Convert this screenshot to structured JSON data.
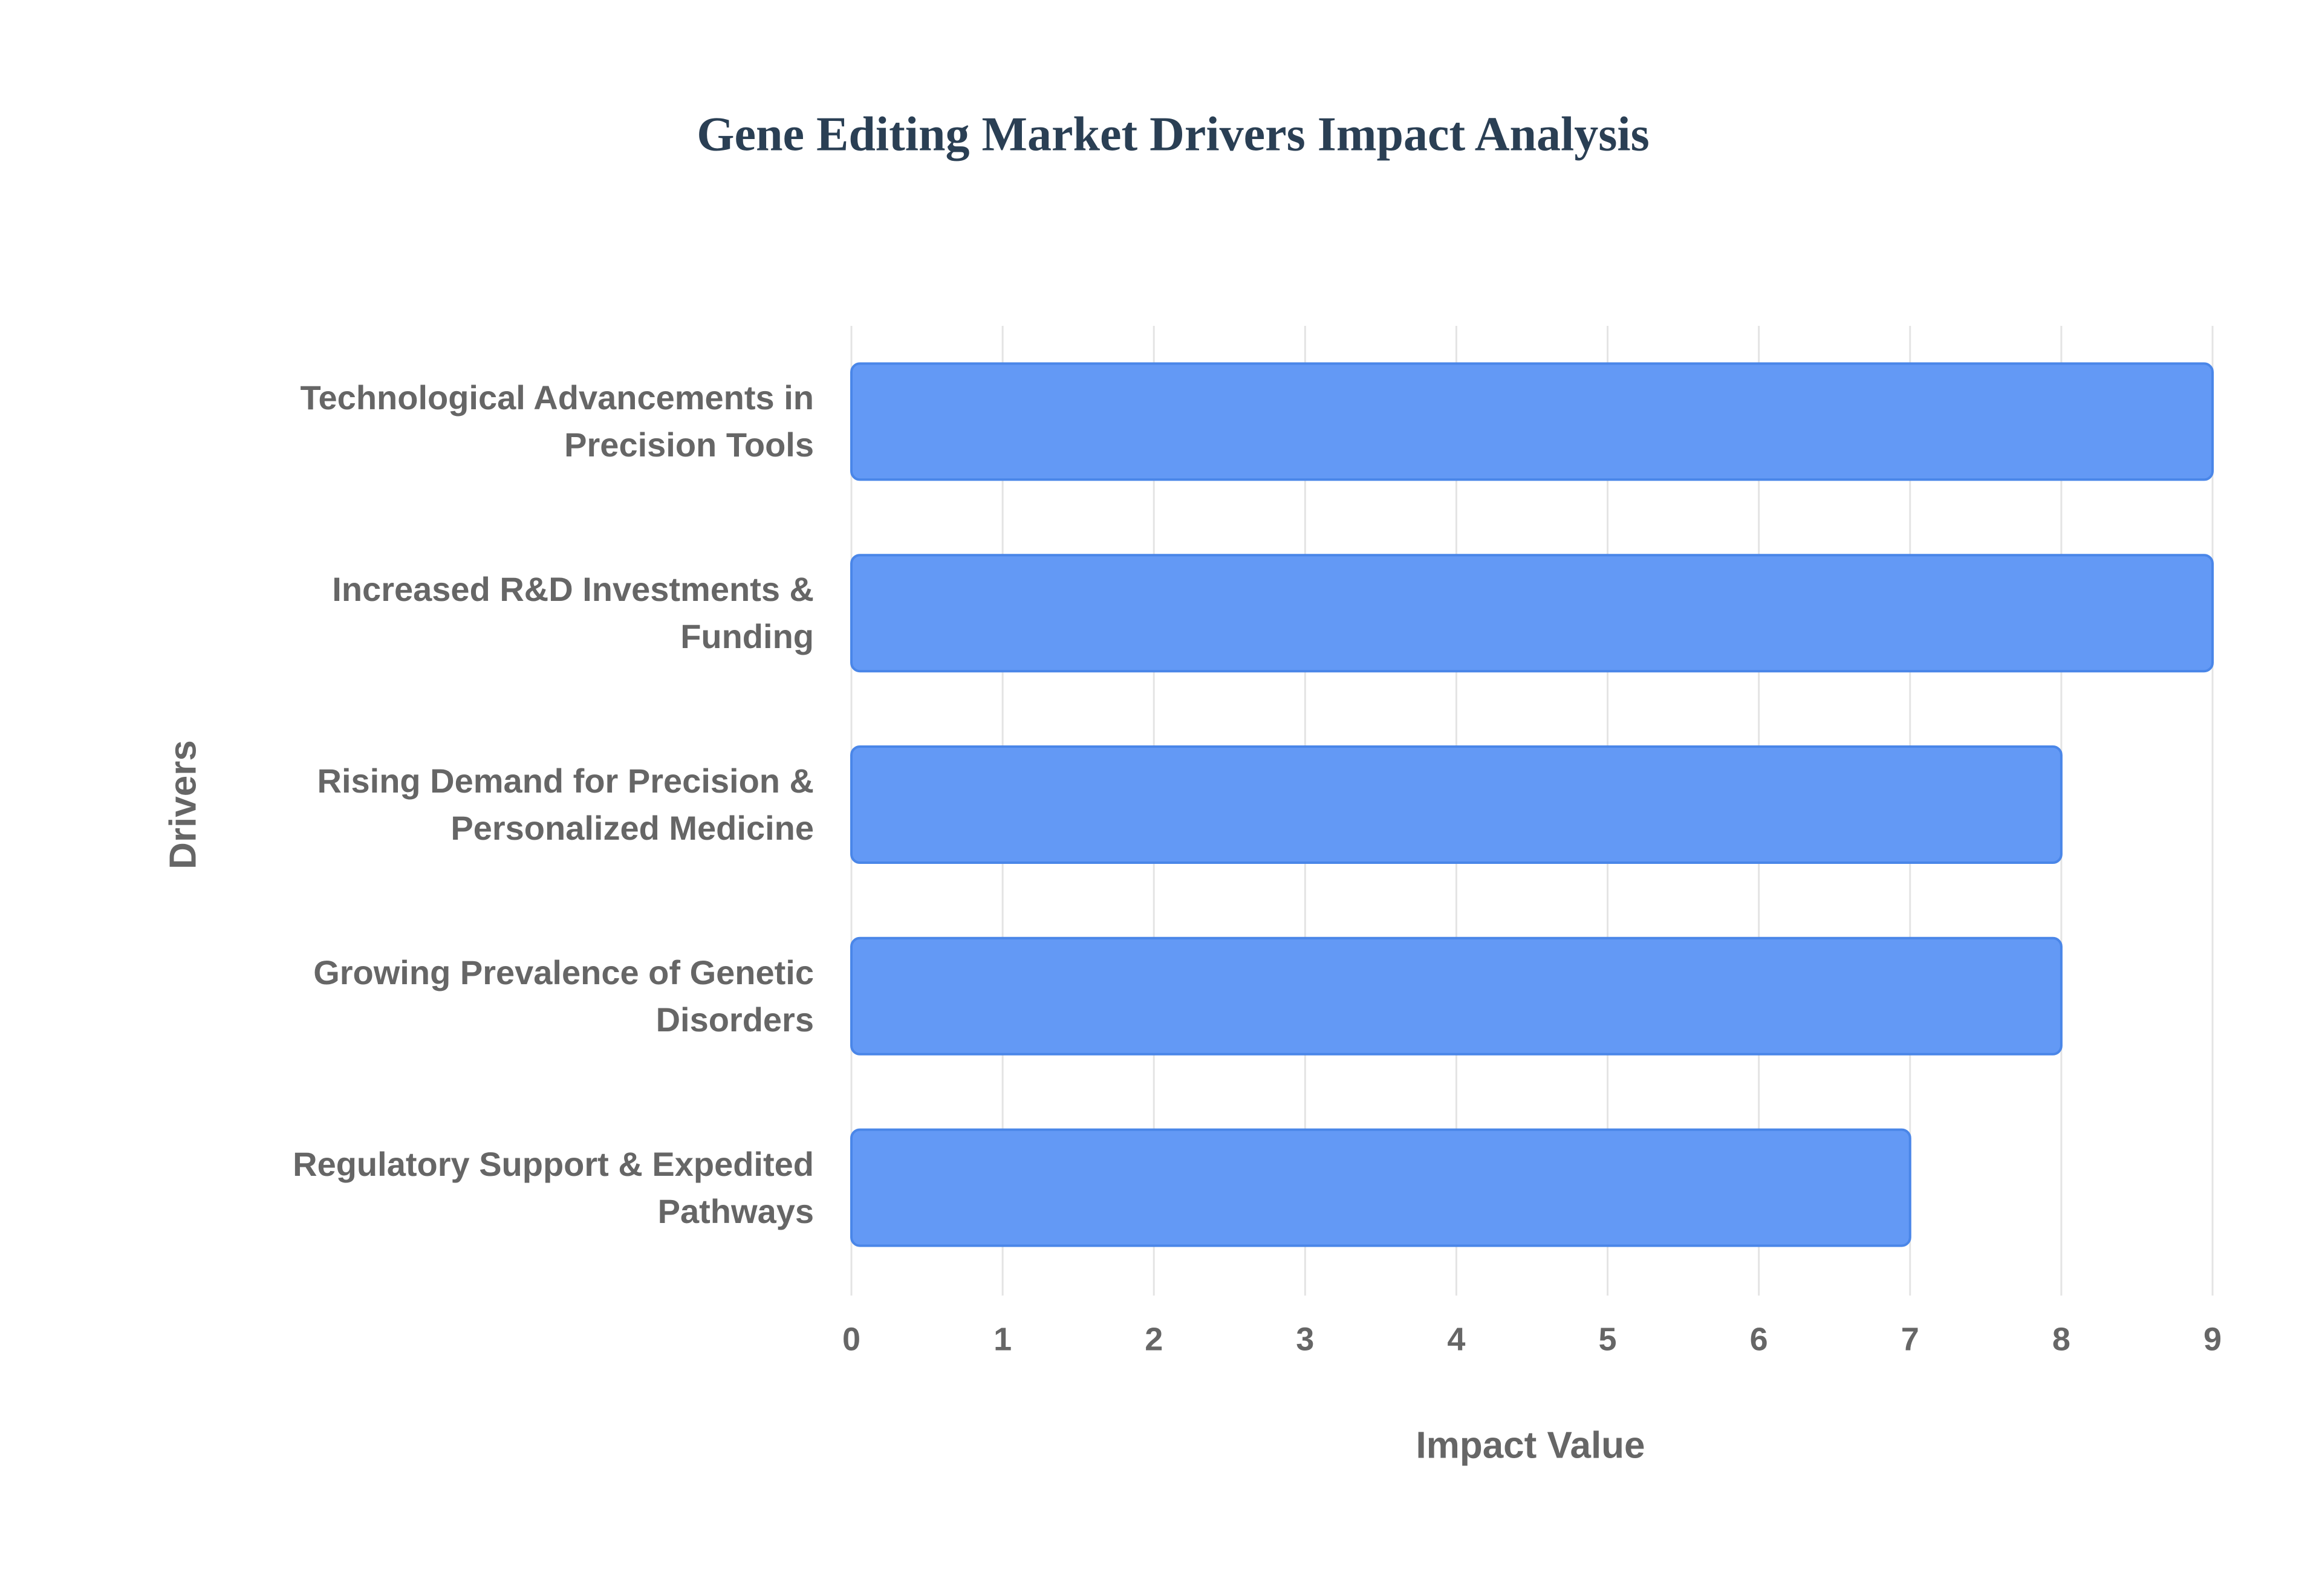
{
  "chart_data": {
    "type": "hbar",
    "title": "Gene Editing Market Drivers Impact Analysis",
    "x_label": "Impact Value",
    "y_label": "Drivers",
    "categories": [
      "Technological Advancements in Precision Tools",
      "Increased R&D Investments & Funding",
      "Rising Demand for Precision & Personalized Medicine",
      "Growing Prevalence of Genetic Disorders",
      "Regulatory Support & Expedited Pathways"
    ],
    "values": [
      9,
      9,
      8,
      8,
      7
    ],
    "color": "#6399f5",
    "xlim": [
      0,
      9
    ],
    "xticks": [
      0,
      1,
      2,
      3,
      4,
      5,
      6,
      7,
      8,
      9
    ],
    "grid": true
  }
}
